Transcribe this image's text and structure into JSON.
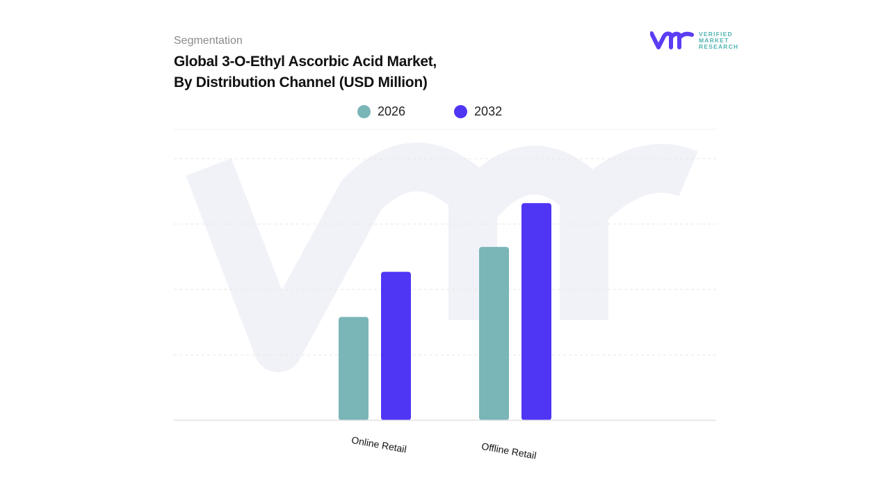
{
  "header": {
    "segment_label": "Segmentation",
    "title_line1": "Global 3-O-Ethyl Ascorbic Acid Market,",
    "title_line2": "By Distribution Channel (USD Million)"
  },
  "logo": {
    "mark": "vmr",
    "line1": "VERIFIED",
    "line2": "MARKET",
    "line3": "RESEARCH",
    "color_mark": "#5b3df5",
    "color_text": "#4fb3b0"
  },
  "chart_data": {
    "type": "bar",
    "title": "Global 3-O-Ethyl Ascorbic Acid Market, By Distribution Channel (USD Million)",
    "categories": [
      "Online Retail",
      "Offline Retail"
    ],
    "series": [
      {
        "name": "2026",
        "color": "#7ab5b8",
        "values": [
          1.58,
          2.65
        ]
      },
      {
        "name": "2032",
        "color": "#4f36f5",
        "values": [
          2.27,
          3.32
        ]
      }
    ],
    "ylim": [
      0,
      4
    ],
    "y_tick_labels_shown": false,
    "grid": true,
    "legend_position": "top"
  }
}
